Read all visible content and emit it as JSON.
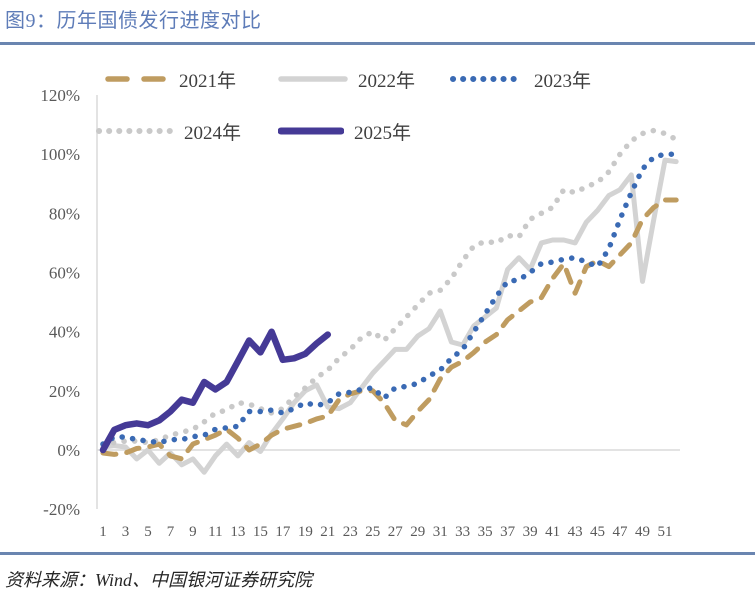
{
  "header": {
    "title": "图9：历年国债发行进度对比"
  },
  "footer": {
    "source": "资料来源：Wind、中国银河证券研究院"
  },
  "colors": {
    "rule_blue": "#6A85B0",
    "title_text": "#5E7CB8",
    "axis_text": "#595959",
    "legend_text": "#3F3F3F",
    "gridline": "#DADADA"
  },
  "chart_data": {
    "type": "line",
    "title": "历年国债发行进度对比",
    "xlabel": "",
    "ylabel": "",
    "y_unit": "%",
    "ylim": [
      -20,
      120
    ],
    "y_ticks": [
      120,
      100,
      80,
      60,
      40,
      20,
      0,
      -20
    ],
    "x_ticks": [
      1,
      3,
      5,
      7,
      9,
      11,
      13,
      15,
      17,
      19,
      21,
      23,
      25,
      27,
      29,
      31,
      33,
      35,
      37,
      39,
      41,
      43,
      45,
      47,
      49,
      51
    ],
    "x_is_week_of_year": "values are weekly, week 1 through week 52",
    "grid": "zero-line-only",
    "legend_position": "top",
    "draw_order": [
      "2022年",
      "2021年",
      "2024年",
      "2023年",
      "2025年"
    ],
    "series": [
      {
        "name": "2021年",
        "style": "dashed",
        "color": "#BF9C60",
        "values": [
          -1,
          -1.5,
          -1,
          0.5,
          1,
          2,
          -2,
          -3,
          2,
          3.5,
          5,
          7,
          4,
          0,
          2,
          5,
          7,
          8,
          9,
          10.5,
          11.5,
          17,
          19,
          20,
          20,
          16,
          10,
          8.5,
          13,
          17,
          24,
          28,
          30,
          33,
          36.5,
          39,
          44,
          47,
          50,
          51.5,
          58,
          63,
          53,
          62,
          64,
          62,
          66,
          70,
          78,
          82,
          84.5,
          84.5
        ]
      },
      {
        "name": "2022年",
        "style": "solid",
        "color": "#D3D3D3",
        "values": [
          1,
          1.5,
          1,
          -3,
          0,
          -4.5,
          -1,
          -5,
          -3,
          -7.5,
          -2,
          2,
          -2,
          2.5,
          -0.5,
          5.5,
          10.5,
          16,
          20,
          22,
          14.5,
          14,
          16,
          21,
          26,
          30,
          34,
          34,
          38.5,
          41,
          47,
          36.5,
          35.5,
          42,
          45,
          48,
          61,
          65,
          61,
          70,
          71,
          71,
          70,
          77,
          81,
          86,
          88,
          93,
          57,
          78,
          98,
          97.5
        ]
      },
      {
        "name": "2023年",
        "style": "dotted",
        "color": "#3A6AB4",
        "values": [
          2,
          4.4,
          4.4,
          3.5,
          3,
          2.5,
          3.5,
          3.5,
          4.5,
          5,
          7,
          7.5,
          8,
          13,
          13,
          13.5,
          12.5,
          14,
          16,
          15,
          16,
          19,
          19.5,
          20.5,
          21,
          17.5,
          21,
          21.5,
          22.5,
          25,
          27,
          31,
          34,
          40,
          46,
          52,
          57,
          57.5,
          60,
          63,
          63.5,
          64.5,
          65,
          63.5,
          62,
          68,
          78,
          87,
          95,
          99,
          100,
          100
        ]
      },
      {
        "name": "2024年",
        "style": "dotted",
        "color": "#C9C9C9",
        "values": [
          2,
          2.5,
          3,
          3,
          2.5,
          3.5,
          5,
          6,
          7,
          9.5,
          12.5,
          13.5,
          16,
          15.5,
          14,
          12.5,
          14,
          18,
          21,
          24.5,
          27,
          31,
          34,
          38,
          40,
          37,
          41,
          45,
          49,
          53,
          54,
          58,
          64,
          69,
          70.5,
          70,
          72.5,
          72,
          78,
          80,
          82,
          88,
          87,
          89,
          90.5,
          94,
          100,
          104.5,
          107,
          108,
          107,
          105
        ]
      },
      {
        "name": "2025年",
        "style": "solid-thick",
        "color": "#453A96",
        "values": [
          0,
          6.8,
          8.4,
          9,
          8.4,
          10,
          13,
          17,
          16,
          23,
          20.5,
          23,
          30,
          37,
          33,
          40,
          30.5,
          31,
          32.5,
          36,
          39
        ]
      }
    ]
  }
}
